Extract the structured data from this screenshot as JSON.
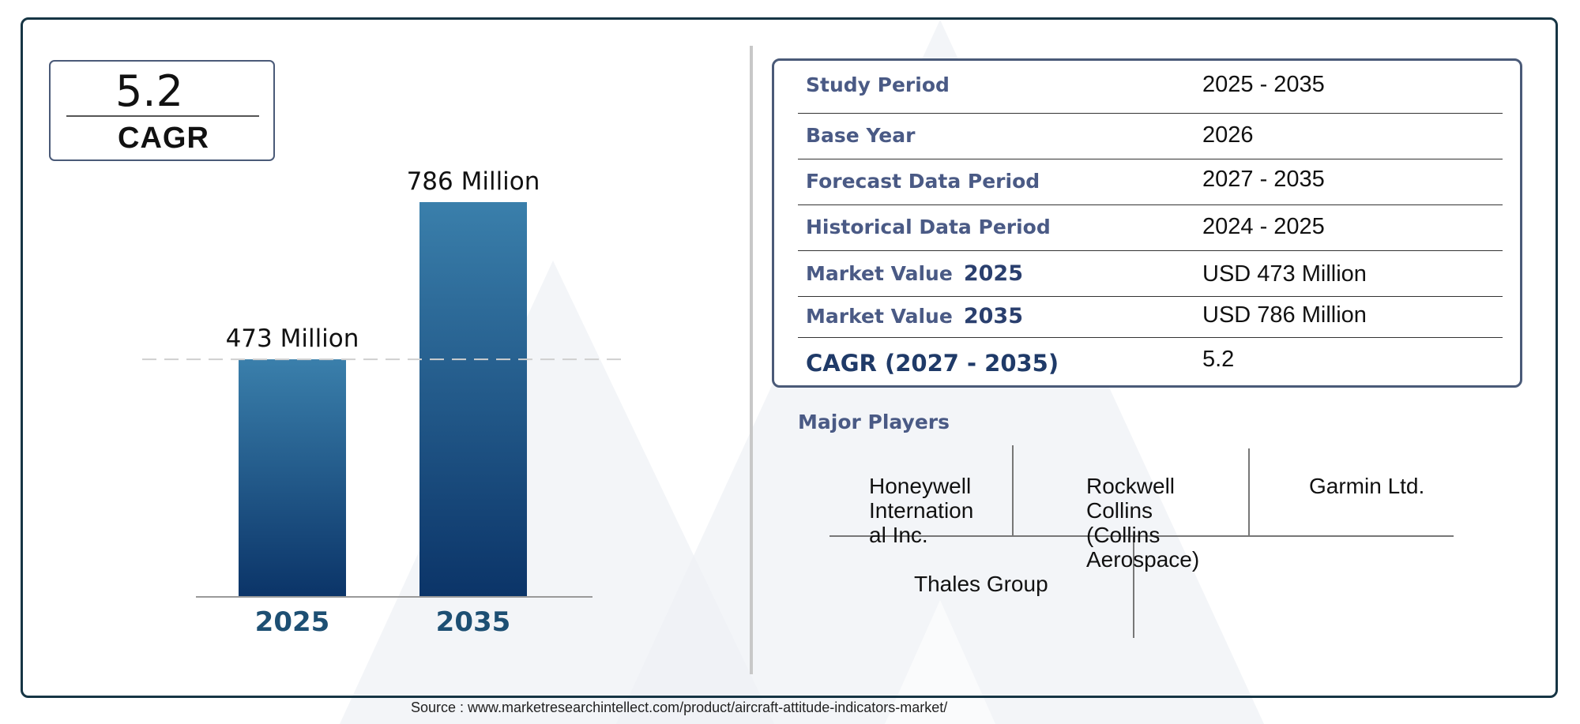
{
  "colors": {
    "bar_top": "#3a7fab",
    "bar_bottom": "#0b3468",
    "year_label": "#1d4f73",
    "accent_label": "#4a5a85",
    "frame": "#163544"
  },
  "cagr_box": {
    "value": "5.2",
    "label": "CAGR"
  },
  "chart_data": {
    "type": "bar",
    "categories": [
      "2025",
      "2035"
    ],
    "values": [
      473,
      786
    ],
    "data_labels": [
      "473 Million",
      "786 Million"
    ],
    "unit": "Million",
    "title": "",
    "xlabel": "",
    "ylabel": "",
    "ylim": [
      0,
      786
    ],
    "reference_line": {
      "value": 473,
      "style": "dashed"
    },
    "grid": false,
    "legend": "none"
  },
  "info_table": [
    {
      "label": "Study Period",
      "value": "2025 - 2035"
    },
    {
      "label": "Base Year",
      "value": "2026"
    },
    {
      "label": "Forecast Data Period",
      "value": "2027 - 2035"
    },
    {
      "label": "Historical Data Period",
      "value": "2024 - 2025"
    },
    {
      "label": "Market Value",
      "year": "2025",
      "value": "USD 473 Million"
    },
    {
      "label": "Market Value",
      "year": "2035",
      "value": "USD 786 Million"
    },
    {
      "label": "CAGR (2027 - 2035)",
      "value": "5.2"
    }
  ],
  "players": {
    "title": "Major Players",
    "list": [
      "Honeywell Internation al Inc.",
      "Rockwell Collins (Collins Aerospace)",
      "Garmin Ltd.",
      "Thales Group"
    ]
  },
  "source": "Source : www.marketresearchintellect.com/product/aircraft-attitude-indicators-market/"
}
